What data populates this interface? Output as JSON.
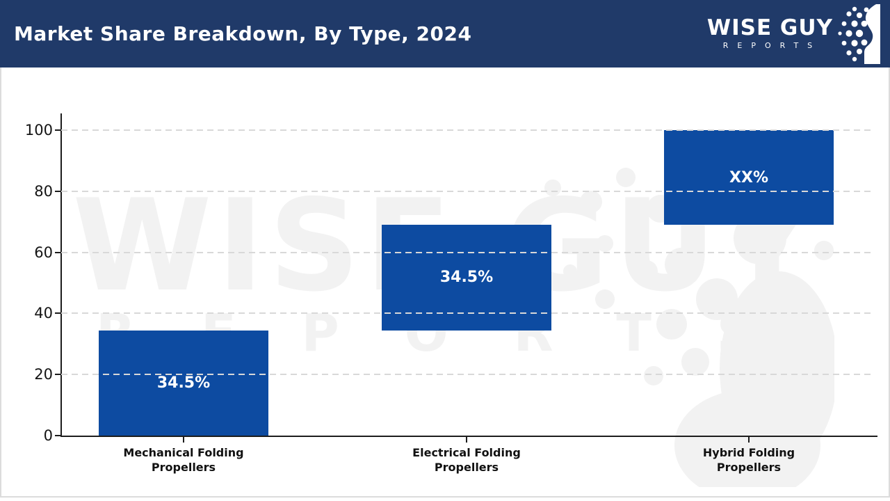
{
  "header": {
    "title": "Market Share Breakdown, By Type, 2024",
    "logo": {
      "line1": "WISE GUY",
      "line2": "REPORTS"
    }
  },
  "watermark": {
    "line1": "WISE GUY",
    "line2": "REPORTS"
  },
  "colors": {
    "header_bg": "#203a69",
    "bar": "#0d4ba1",
    "grid": "#d8d8d8",
    "axis": "#1c1c1c",
    "watermark": "#f2f2f2",
    "bar_label": "#ffffff"
  },
  "chart_data": {
    "type": "bar",
    "variant": "stacked-progression",
    "title": "Market Share Breakdown, By Type, 2024",
    "categories": [
      "Mechanical Folding\nPropellers",
      "Electrical Folding\nPropellers",
      "Hybrid Folding\nPropellers"
    ],
    "bars": [
      {
        "category": "Mechanical Folding\nPropellers",
        "label": "34.5%",
        "start": 0,
        "end": 34.5
      },
      {
        "category": "Electrical Folding\nPropellers",
        "label": "34.5%",
        "start": 34.5,
        "end": 69
      },
      {
        "category": "Hybrid Folding\nPropellers",
        "label": "XX%",
        "start": 69,
        "end": 100
      }
    ],
    "ylim": [
      0,
      100
    ],
    "yticks": [
      0,
      20,
      40,
      60,
      80,
      100
    ],
    "xlabel": "",
    "ylabel": "",
    "grid": {
      "horizontal": true,
      "style": "dashed",
      "drawn_over_bars": true
    },
    "legend": "none",
    "bar_color": "#0d4ba1"
  }
}
